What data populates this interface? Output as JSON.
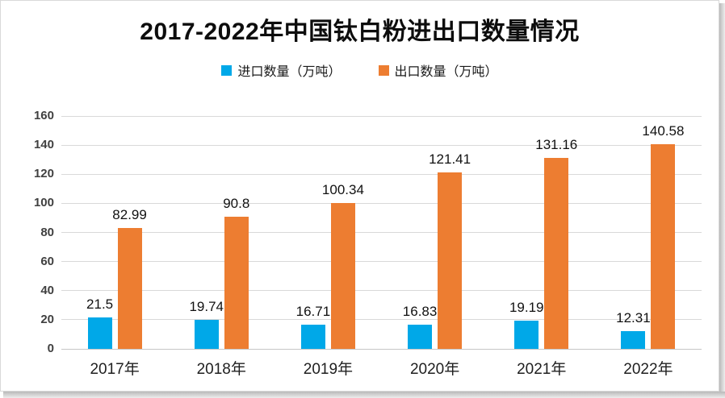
{
  "chart_data": {
    "type": "bar",
    "title": "2017-2022年中国钛白粉进出口数量情况",
    "categories": [
      "2017年",
      "2018年",
      "2019年",
      "2020年",
      "2021年",
      "2022年"
    ],
    "series": [
      {
        "name": "进口数量（万吨）",
        "color": "#00A8E8",
        "values": [
          21.5,
          19.74,
          16.71,
          16.83,
          19.19,
          12.31
        ],
        "labels": [
          "21.5",
          "19.74",
          "16.71",
          "16.83",
          "19.19",
          "12.31"
        ]
      },
      {
        "name": "出口数量（万吨）",
        "color": "#ED7D31",
        "values": [
          82.99,
          90.8,
          100.34,
          121.41,
          131.16,
          140.58
        ],
        "labels": [
          "82.99",
          "90.8",
          "100.34",
          "121.41",
          "131.16",
          "140.58"
        ]
      }
    ],
    "ylim": [
      0,
      160
    ],
    "yticks": [
      0,
      20,
      40,
      60,
      80,
      100,
      120,
      140,
      160
    ],
    "grid": true,
    "legend_position": "top",
    "gridline_color": "#d9d9d9"
  }
}
